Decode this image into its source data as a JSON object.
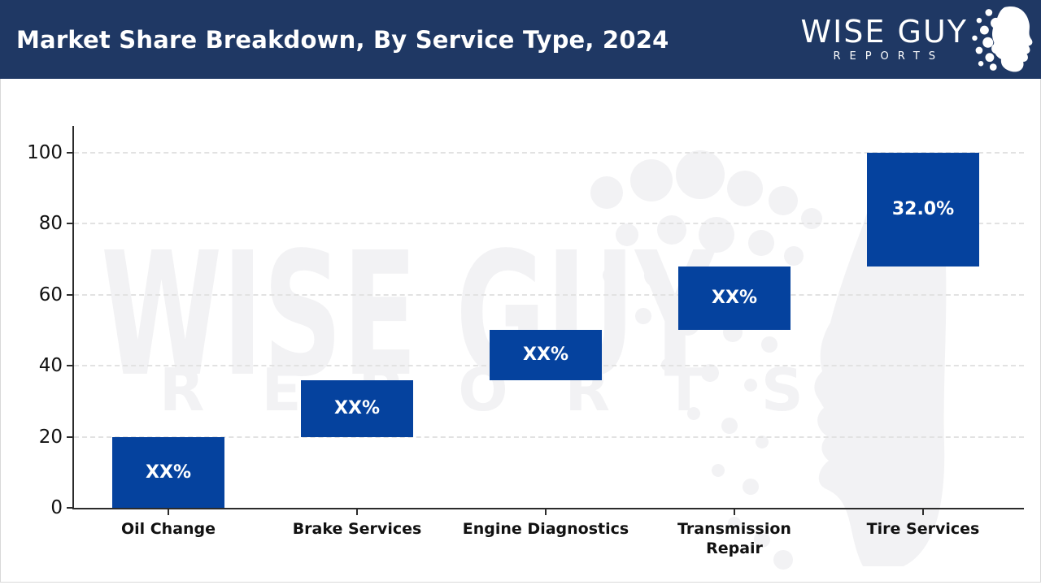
{
  "header": {
    "title": "Market Share Breakdown, By Service Type, 2024",
    "logo": {
      "wordmark": "WISE GUY",
      "subtext": "REPORTS"
    }
  },
  "watermark": {
    "wordmark": "WISE GUY",
    "subtext": "REPORTS"
  },
  "chart_data": {
    "type": "bar",
    "variant": "floating-waterfall",
    "title": "Market Share Breakdown, By Service Type, 2024",
    "categories": [
      "Oil Change",
      "Brake Services",
      "Engine Diagnostics",
      "Transmission\nRepair",
      "Tire Services"
    ],
    "bars": [
      {
        "category": "Oil Change",
        "start": 0,
        "end": 20,
        "label": "XX%"
      },
      {
        "category": "Brake Services",
        "start": 20,
        "end": 36,
        "label": "XX%"
      },
      {
        "category": "Engine Diagnostics",
        "start": 36,
        "end": 50,
        "label": "XX%"
      },
      {
        "category": "Transmission Repair",
        "start": 50,
        "end": 68,
        "label": "XX%"
      },
      {
        "category": "Tire Services",
        "start": 68,
        "end": 100,
        "label": "32.0%"
      }
    ],
    "yticks": [
      0,
      20,
      40,
      60,
      80,
      100
    ],
    "ylim": [
      0,
      107
    ],
    "xlabel": "",
    "ylabel": "",
    "grid": "horizontal-dashed",
    "legend": "none",
    "bar_color": "#05429e",
    "bar_label_color": "#ffffff"
  },
  "colors": {
    "header_bg": "#1f3864",
    "bar": "#05429e",
    "grid": "#e2e2e2",
    "axis": "#2b2b2b",
    "watermark": "#f2f2f4",
    "canvas_border": "#d9d9d9",
    "background": "#ffffff"
  }
}
